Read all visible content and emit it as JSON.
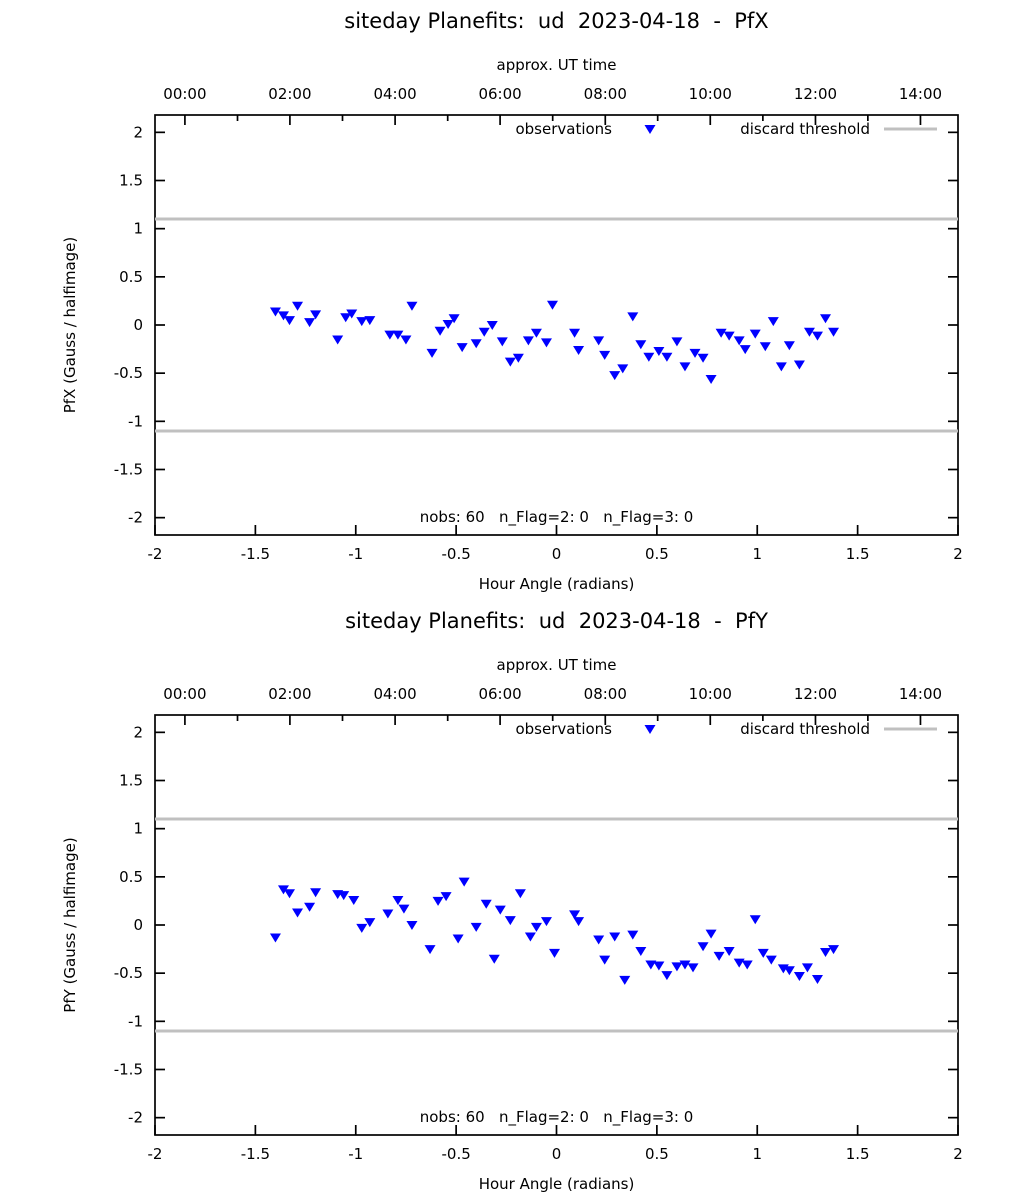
{
  "page": {
    "background": "#ffffff"
  },
  "colors": {
    "points": "#0000ff",
    "threshold": "#c0c0c0",
    "axis": "#000000",
    "text": "#000000"
  },
  "chart_data": [
    {
      "type": "scatter",
      "title": "siteday Planefits:  ud  2023-04-18  -  PfX",
      "top_axis_label": "approx. UT time",
      "xlabel": "Hour Angle (radians)",
      "ylabel": "PfX (Gauss / halfimage)",
      "xlim": [
        -2,
        2
      ],
      "ylim": [
        -2.18,
        2.18
      ],
      "x_tick_values": [
        -2,
        -1.5,
        -1,
        -0.5,
        0,
        0.5,
        1,
        1.5,
        2
      ],
      "x_tick_labels": [
        "-2",
        "-1.5",
        "-1",
        "-0.5",
        "0",
        "0.5",
        "1",
        "1.5",
        "2"
      ],
      "y_tick_values": [
        2,
        1.5,
        1,
        0.5,
        0,
        -0.5,
        -1,
        -1.5,
        -2
      ],
      "y_tick_labels": [
        "2",
        "1.5",
        "1",
        "0.5",
        "0",
        "-0.5",
        "-1",
        "-1.5",
        "-2"
      ],
      "ut_tick_positions": [
        -1.851,
        -1.328,
        -0.804,
        -0.281,
        0.243,
        0.766,
        1.29,
        1.813
      ],
      "ut_tick_labels": [
        "00:00",
        "02:00",
        "04:00",
        "06:00",
        "08:00",
        "10:00",
        "12:00",
        "14:00"
      ],
      "ut_minor_positions": [
        -1.589,
        -1.066,
        -0.542,
        -0.019,
        0.504,
        1.028,
        1.551
      ],
      "legend": [
        {
          "label": "observations",
          "type": "marker"
        },
        {
          "label": "discard threshold",
          "type": "line"
        }
      ],
      "threshold_y": [
        1.1,
        -1.1
      ],
      "annotation": "nobs: 60   n_Flag=2: 0   n_Flag=3: 0",
      "grid": false,
      "series": [
        {
          "name": "observations",
          "marker": "triangle-down",
          "color": "#0000ff",
          "points": [
            [
              -1.4,
              0.14
            ],
            [
              -1.36,
              0.1
            ],
            [
              -1.33,
              0.05
            ],
            [
              -1.29,
              0.2
            ],
            [
              -1.23,
              0.03
            ],
            [
              -1.2,
              0.11
            ],
            [
              -1.09,
              -0.15
            ],
            [
              -1.05,
              0.08
            ],
            [
              -1.02,
              0.12
            ],
            [
              -0.97,
              0.04
            ],
            [
              -0.93,
              0.05
            ],
            [
              -0.83,
              -0.1
            ],
            [
              -0.79,
              -0.1
            ],
            [
              -0.75,
              -0.15
            ],
            [
              -0.72,
              0.2
            ],
            [
              -0.62,
              -0.29
            ],
            [
              -0.58,
              -0.06
            ],
            [
              -0.54,
              0.01
            ],
            [
              -0.51,
              0.07
            ],
            [
              -0.47,
              -0.23
            ],
            [
              -0.4,
              -0.19
            ],
            [
              -0.36,
              -0.07
            ],
            [
              -0.32,
              0.0
            ],
            [
              -0.27,
              -0.17
            ],
            [
              -0.23,
              -0.38
            ],
            [
              -0.19,
              -0.34
            ],
            [
              -0.14,
              -0.16
            ],
            [
              -0.1,
              -0.08
            ],
            [
              -0.05,
              -0.18
            ],
            [
              -0.02,
              0.21
            ],
            [
              0.09,
              -0.08
            ],
            [
              0.11,
              -0.26
            ],
            [
              0.21,
              -0.16
            ],
            [
              0.24,
              -0.31
            ],
            [
              0.29,
              -0.52
            ],
            [
              0.33,
              -0.45
            ],
            [
              0.38,
              0.09
            ],
            [
              0.42,
              -0.2
            ],
            [
              0.46,
              -0.33
            ],
            [
              0.51,
              -0.27
            ],
            [
              0.55,
              -0.33
            ],
            [
              0.6,
              -0.17
            ],
            [
              0.64,
              -0.43
            ],
            [
              0.69,
              -0.29
            ],
            [
              0.73,
              -0.34
            ],
            [
              0.77,
              -0.56
            ],
            [
              0.82,
              -0.08
            ],
            [
              0.86,
              -0.11
            ],
            [
              0.91,
              -0.16
            ],
            [
              0.94,
              -0.25
            ],
            [
              0.99,
              -0.09
            ],
            [
              1.04,
              -0.22
            ],
            [
              1.08,
              0.04
            ],
            [
              1.12,
              -0.43
            ],
            [
              1.16,
              -0.21
            ],
            [
              1.21,
              -0.41
            ],
            [
              1.26,
              -0.07
            ],
            [
              1.3,
              -0.11
            ],
            [
              1.34,
              0.07
            ],
            [
              1.38,
              -0.07
            ]
          ]
        }
      ]
    },
    {
      "type": "scatter",
      "title": "siteday Planefits:  ud  2023-04-18  -  PfY",
      "top_axis_label": "approx. UT time",
      "xlabel": "Hour Angle (radians)",
      "ylabel": "PfY (Gauss / halfimage)",
      "xlim": [
        -2,
        2
      ],
      "ylim": [
        -2.18,
        2.18
      ],
      "x_tick_values": [
        -2,
        -1.5,
        -1,
        -0.5,
        0,
        0.5,
        1,
        1.5,
        2
      ],
      "x_tick_labels": [
        "-2",
        "-1.5",
        "-1",
        "-0.5",
        "0",
        "0.5",
        "1",
        "1.5",
        "2"
      ],
      "y_tick_values": [
        2,
        1.5,
        1,
        0.5,
        0,
        -0.5,
        -1,
        -1.5,
        -2
      ],
      "y_tick_labels": [
        "2",
        "1.5",
        "1",
        "0.5",
        "0",
        "-0.5",
        "-1",
        "-1.5",
        "-2"
      ],
      "ut_tick_positions": [
        -1.851,
        -1.328,
        -0.804,
        -0.281,
        0.243,
        0.766,
        1.29,
        1.813
      ],
      "ut_tick_labels": [
        "00:00",
        "02:00",
        "04:00",
        "06:00",
        "08:00",
        "10:00",
        "12:00",
        "14:00"
      ],
      "ut_minor_positions": [
        -1.589,
        -1.066,
        -0.542,
        -0.019,
        0.504,
        1.028,
        1.551
      ],
      "legend": [
        {
          "label": "observations",
          "type": "marker"
        },
        {
          "label": "discard threshold",
          "type": "line"
        }
      ],
      "threshold_y": [
        1.1,
        -1.1
      ],
      "annotation": "nobs: 60   n_Flag=2: 0   n_Flag=3: 0",
      "grid": false,
      "series": [
        {
          "name": "observations",
          "marker": "triangle-down",
          "color": "#0000ff",
          "points": [
            [
              -1.4,
              -0.13
            ],
            [
              -1.36,
              0.37
            ],
            [
              -1.33,
              0.33
            ],
            [
              -1.29,
              0.13
            ],
            [
              -1.23,
              0.19
            ],
            [
              -1.2,
              0.34
            ],
            [
              -1.09,
              0.32
            ],
            [
              -1.06,
              0.31
            ],
            [
              -1.01,
              0.26
            ],
            [
              -0.97,
              -0.03
            ],
            [
              -0.93,
              0.03
            ],
            [
              -0.84,
              0.12
            ],
            [
              -0.79,
              0.26
            ],
            [
              -0.76,
              0.17
            ],
            [
              -0.72,
              0.0
            ],
            [
              -0.63,
              -0.25
            ],
            [
              -0.59,
              0.25
            ],
            [
              -0.55,
              0.3
            ],
            [
              -0.49,
              -0.14
            ],
            [
              -0.46,
              0.45
            ],
            [
              -0.4,
              -0.02
            ],
            [
              -0.35,
              0.22
            ],
            [
              -0.31,
              -0.35
            ],
            [
              -0.28,
              0.16
            ],
            [
              -0.23,
              0.05
            ],
            [
              -0.18,
              0.33
            ],
            [
              -0.13,
              -0.12
            ],
            [
              -0.1,
              -0.02
            ],
            [
              -0.05,
              0.04
            ],
            [
              -0.01,
              -0.29
            ],
            [
              0.09,
              0.11
            ],
            [
              0.11,
              0.04
            ],
            [
              0.21,
              -0.15
            ],
            [
              0.24,
              -0.36
            ],
            [
              0.29,
              -0.12
            ],
            [
              0.34,
              -0.57
            ],
            [
              0.38,
              -0.1
            ],
            [
              0.42,
              -0.27
            ],
            [
              0.47,
              -0.41
            ],
            [
              0.51,
              -0.42
            ],
            [
              0.55,
              -0.52
            ],
            [
              0.6,
              -0.43
            ],
            [
              0.64,
              -0.41
            ],
            [
              0.68,
              -0.44
            ],
            [
              0.73,
              -0.22
            ],
            [
              0.77,
              -0.09
            ],
            [
              0.81,
              -0.32
            ],
            [
              0.86,
              -0.27
            ],
            [
              0.91,
              -0.39
            ],
            [
              0.95,
              -0.41
            ],
            [
              0.99,
              0.06
            ],
            [
              1.03,
              -0.29
            ],
            [
              1.07,
              -0.36
            ],
            [
              1.13,
              -0.45
            ],
            [
              1.16,
              -0.47
            ],
            [
              1.21,
              -0.53
            ],
            [
              1.25,
              -0.44
            ],
            [
              1.3,
              -0.56
            ],
            [
              1.34,
              -0.28
            ],
            [
              1.38,
              -0.25
            ]
          ]
        }
      ]
    }
  ]
}
